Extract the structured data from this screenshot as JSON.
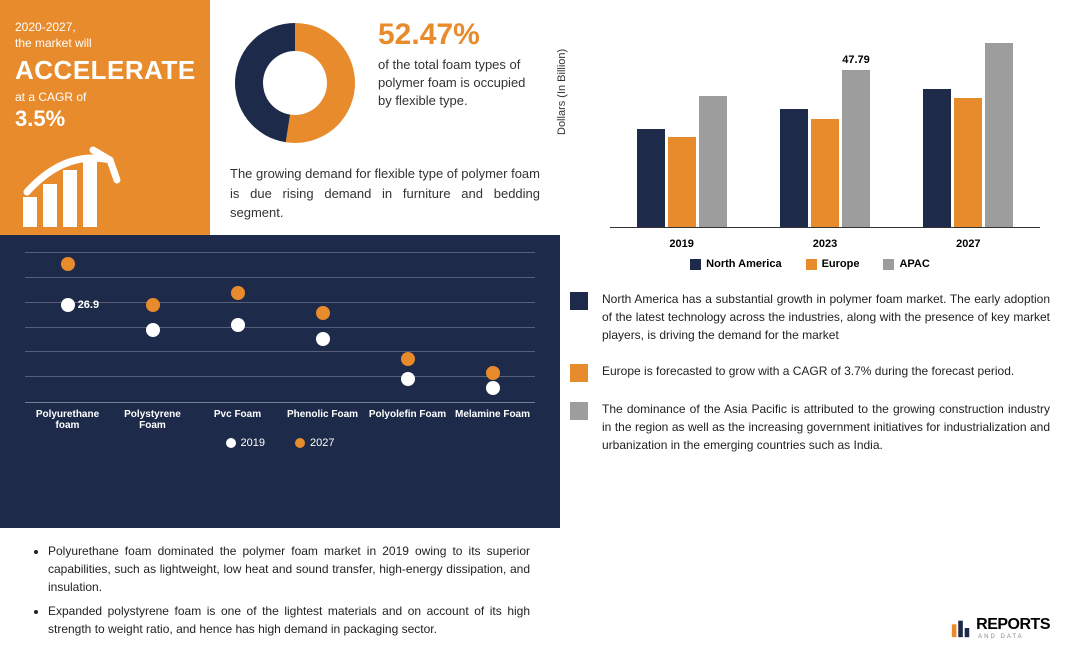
{
  "colors": {
    "orange": "#e88b2c",
    "navy": "#1e2a4a",
    "grey": "#9d9d9d",
    "white": "#ffffff",
    "text": "#222222"
  },
  "cagr_box": {
    "bg": "#e88b2c",
    "period": "2020-2027,",
    "line1": "the market will",
    "accelerate": "ACCELERATE",
    "line2": "at a CAGR of",
    "pct": "3.5%"
  },
  "donut": {
    "percent_flexible": 52.47,
    "pct_label": "52.47%",
    "desc": "of the total foam types of polymer foam is occupied by flexible type.",
    "caption": "The growing demand for flexible type of polymer foam is due rising demand in furniture and bedding segment.",
    "color_a": "#e88b2c",
    "color_b": "#1e2a4a",
    "thickness": 28
  },
  "scatter": {
    "bg": "#1e2a4a",
    "categories": [
      "Polyurethane foam",
      "Polystyrene Foam",
      "Pvc Foam",
      "Phenolic Foam",
      "Polyolefin Foam",
      "Melamine Foam"
    ],
    "series": [
      {
        "name": "2019",
        "color": "#ffffff",
        "values": [
          26.9,
          22.5,
          23.5,
          21.0,
          14.0,
          12.5
        ]
      },
      {
        "name": "2027",
        "color": "#e88b2c",
        "values": [
          34.0,
          27.0,
          29.0,
          25.5,
          17.5,
          15.0
        ]
      }
    ],
    "data_label": {
      "value": "26.9",
      "series_idx": 0,
      "cat_idx": 0
    },
    "y_min": 10,
    "y_max": 36,
    "grid_steps": 6
  },
  "bullets": [
    "Polyurethane foam dominated the polymer foam market in 2019 owing to its superior capabilities, such as lightweight, low heat and sound transfer, high-energy dissipation, and insulation.",
    "Expanded polystyrene foam is one of the lightest materials and on account of its high strength to weight ratio, and hence has high demand in packaging sector."
  ],
  "bar_chart": {
    "ylabel": "Dollars (In Billion)",
    "years": [
      "2019",
      "2023",
      "2027"
    ],
    "series": [
      {
        "name": "North America",
        "color": "#1e2a4a",
        "values": [
          30,
          36,
          42
        ]
      },
      {
        "name": "Europe",
        "color": "#e88b2c",
        "values": [
          27.5,
          33,
          39.5
        ]
      },
      {
        "name": "APAC",
        "color": "#9d9d9d",
        "values": [
          40,
          47.79,
          56
        ]
      }
    ],
    "y_min": 0,
    "y_max": 60,
    "value_label": {
      "text": "47.79",
      "series_idx": 2,
      "group_idx": 1
    }
  },
  "region_notes": [
    {
      "color": "#1e2a4a",
      "text": "North America has a substantial growth in polymer foam market. The early adoption of the latest technology across the industries, along with the presence of key market players, is driving the demand for the market"
    },
    {
      "color": "#e88b2c",
      "text": "Europe is forecasted to grow with a CAGR of 3.7% during the forecast period."
    },
    {
      "color": "#9d9d9d",
      "text": "The dominance of the Asia Pacific is attributed to the growing construction industry in the region as well as the increasing government initiatives for industrialization and urbanization in the emerging countries such as India."
    }
  ],
  "logo": {
    "text": "REPORTS",
    "sub": "AND DATA",
    "orange": "#e88b2c",
    "navy": "#1e2a4a"
  }
}
